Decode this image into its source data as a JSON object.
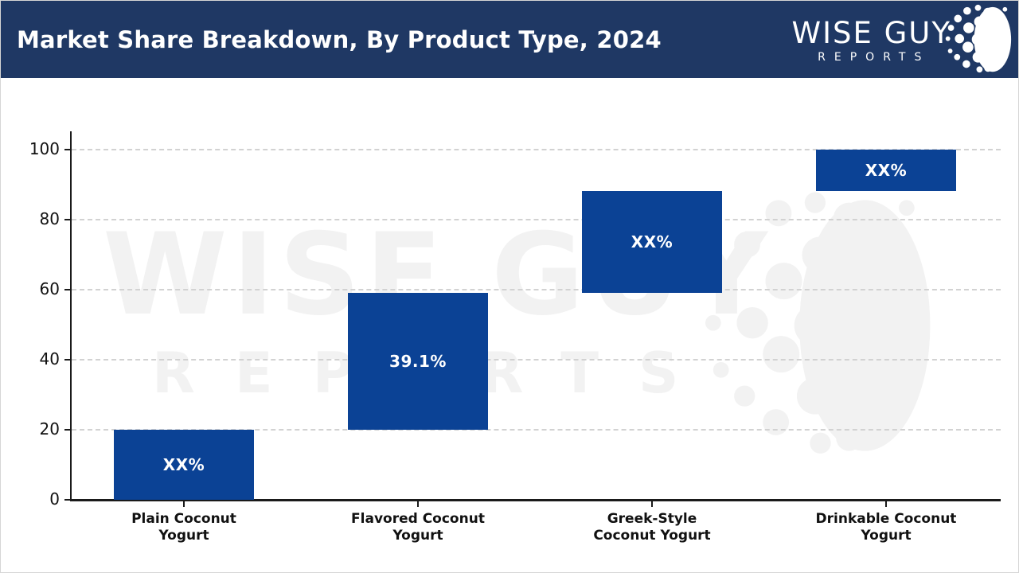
{
  "header": {
    "title": "Market Share Breakdown, By Product Type, 2024",
    "logo": {
      "line1": "WISE GUY",
      "line2": "REPORTS"
    }
  },
  "watermark": {
    "line1": "WISE GUY",
    "line2": "REPORTS"
  },
  "colors": {
    "header_bg": "#1F3864",
    "bar": "#0B4295",
    "bar_label": "#FFFFFF",
    "grid": "#D2D2D2",
    "axis": "#1A1A1A",
    "watermark": "#F2F2F2"
  },
  "chart_data": {
    "type": "bar",
    "variant": "waterfall",
    "title": "Market Share Breakdown, By Product Type, 2024",
    "categories": [
      "Plain Coconut Yogurt",
      "Flavored Coconut Yogurt",
      "Greek-Style Coconut Yogurt",
      "Drinkable Coconut Yogurt"
    ],
    "categories_wrapped": [
      [
        "Plain Coconut",
        "Yogurt"
      ],
      [
        "Flavored Coconut",
        "Yogurt"
      ],
      [
        "Greek-Style",
        "Coconut Yogurt"
      ],
      [
        "Drinkable Coconut",
        "Yogurt"
      ]
    ],
    "segments": [
      {
        "label": "XX%",
        "start": 0,
        "end": 20
      },
      {
        "label": "39.1%",
        "start": 20,
        "end": 59.1
      },
      {
        "label": "XX%",
        "start": 59.1,
        "end": 88.2
      },
      {
        "label": "XX%",
        "start": 88.2,
        "end": 100
      }
    ],
    "implied_heights": [
      20,
      39.1,
      29.1,
      11.8
    ],
    "yticks": [
      0,
      20,
      40,
      60,
      80,
      100
    ],
    "ylim": [
      0,
      105
    ],
    "xlabel": "",
    "ylabel": "",
    "grid": "horizontal-dashed",
    "legend": "none"
  }
}
